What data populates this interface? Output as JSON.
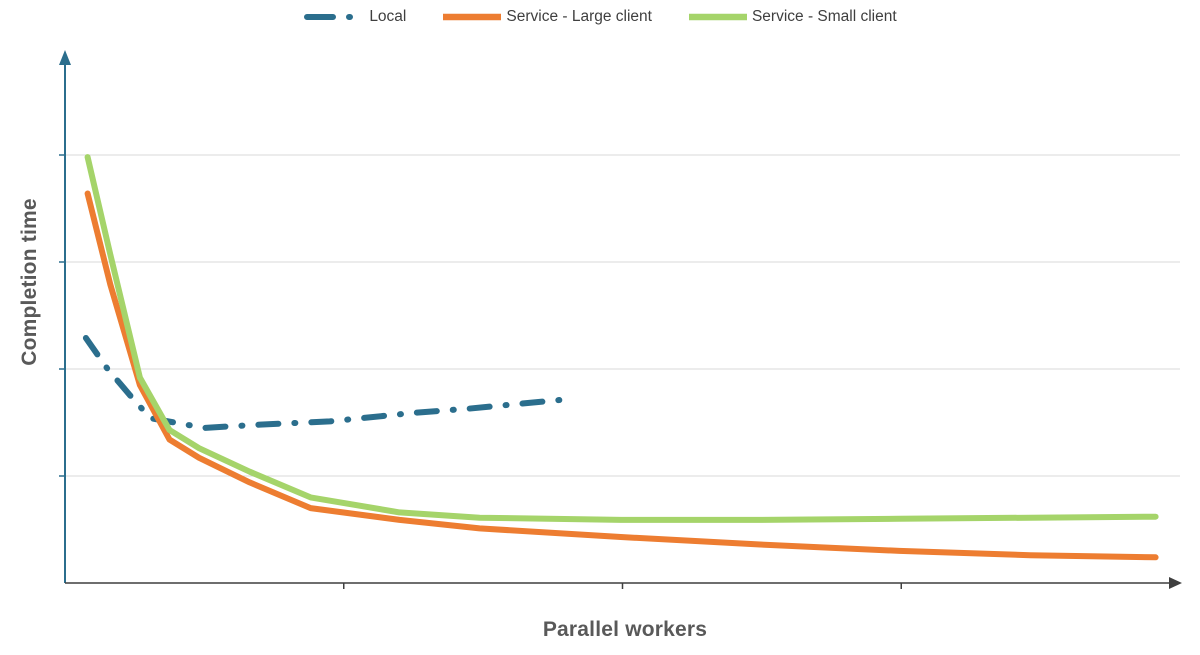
{
  "legend": {
    "items": [
      {
        "label": "Local",
        "color": "#2B6E8D",
        "line_style": "dash-dot"
      },
      {
        "label": "Service - Large client",
        "color": "#ED7D31",
        "line_style": "solid"
      },
      {
        "label": "Service - Small client",
        "color": "#A5D46A",
        "line_style": "solid"
      }
    ]
  },
  "axes": {
    "x_title": "Parallel workers",
    "y_title": "Completion time"
  },
  "chart_data": {
    "type": "line",
    "title": "",
    "xlabel": "Parallel workers",
    "ylabel": "Completion time",
    "axis_tick_labels_shown": false,
    "units": "relative - both axes are unlabeled; values estimated from gridline spacing",
    "x_range": [
      0,
      64
    ],
    "y_range": [
      0,
      5
    ],
    "y_gridlines": [
      1,
      2,
      3,
      4
    ],
    "x_ticks": [
      16,
      32,
      48
    ],
    "grid": "horizontal only",
    "legend_position": "top-center",
    "colors": {
      "gridline": "#D9D9D9",
      "y_axis": "#2B6E8D",
      "x_axis": "#3F3F3F",
      "axis_title": "#595959",
      "legend_text": "#3F3F3F"
    },
    "series": [
      {
        "name": "Local",
        "color": "#2B6E8D",
        "style": "dash-dot",
        "x": [
          1.2,
          2.4,
          3.7,
          4.9,
          8,
          11.2,
          15.2,
          20,
          23.2,
          28.4
        ],
        "y": [
          2.29,
          2.01,
          1.76,
          1.54,
          1.45,
          1.48,
          1.51,
          1.59,
          1.63,
          1.71
        ]
      },
      {
        "name": "Service - Large client",
        "color": "#ED7D31",
        "style": "solid",
        "x": [
          1.3,
          2.6,
          4.3,
          6,
          7.7,
          10.6,
          14.1,
          19.2,
          23.8,
          31.9,
          39.9,
          47.9,
          55.4,
          62.6
        ],
        "y": [
          3.64,
          2.79,
          1.85,
          1.34,
          1.17,
          0.94,
          0.7,
          0.59,
          0.51,
          0.43,
          0.36,
          0.3,
          0.26,
          0.24
        ]
      },
      {
        "name": "Service - Small client",
        "color": "#A5D46A",
        "style": "solid",
        "x": [
          1.3,
          2.6,
          4.3,
          6,
          7.7,
          10.6,
          14.1,
          19.2,
          23.8,
          31.9,
          39.9,
          47.9,
          55.4,
          62.6
        ],
        "y": [
          3.98,
          3.07,
          1.92,
          1.43,
          1.26,
          1.04,
          0.8,
          0.66,
          0.61,
          0.59,
          0.59,
          0.6,
          0.61,
          0.62
        ]
      }
    ]
  }
}
